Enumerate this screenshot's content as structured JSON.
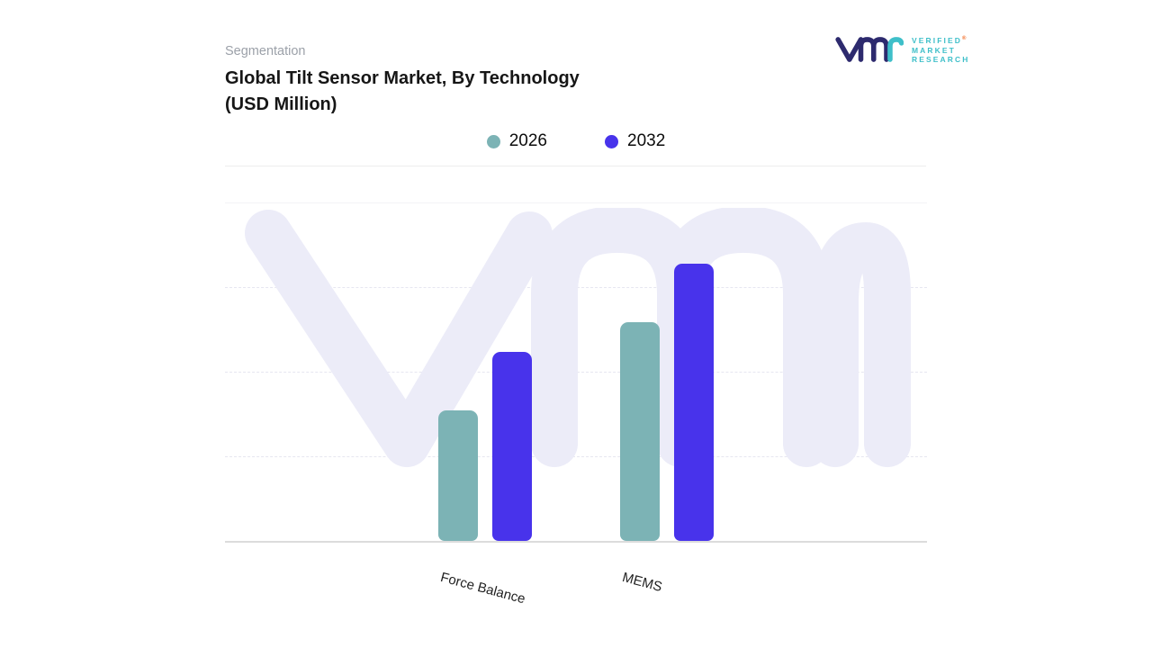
{
  "header": {
    "eyebrow": "Segmentation",
    "title_line1": "Global Tilt Sensor Market, By Technology",
    "title_line2": "(USD Million)"
  },
  "logo": {
    "lines": [
      "VERIFIED",
      "MARKET",
      "RESEARCH"
    ],
    "registered_mark": "®",
    "brand_navy": "#2d2a6e",
    "brand_teal": "#3ebfc9"
  },
  "legend": [
    {
      "label": "2026",
      "color": "#7cb3b5"
    },
    {
      "label": "2032",
      "color": "#4833eb"
    }
  ],
  "watermark": {
    "text": "vmr",
    "color": "#ececf8"
  },
  "chart_data": {
    "type": "bar",
    "title": "Global Tilt Sensor Market, By Technology (USD Million)",
    "categories": [
      "Force Balance",
      "MEMS"
    ],
    "series": [
      {
        "name": "2026",
        "color": "#7cb3b5",
        "values": [
          47,
          79
        ]
      },
      {
        "name": "2032",
        "color": "#4833eb",
        "values": [
          68,
          100
        ]
      }
    ],
    "xlabel": "",
    "ylabel": "USD Million",
    "ylim": [
      0,
      122
    ],
    "value_axis_labels_visible": false,
    "grid": "horizontal-dashed",
    "legend_position": "top-center",
    "note": "No numeric axis labels shown; values are relative estimates normalized to MEMS 2032 = 100"
  }
}
